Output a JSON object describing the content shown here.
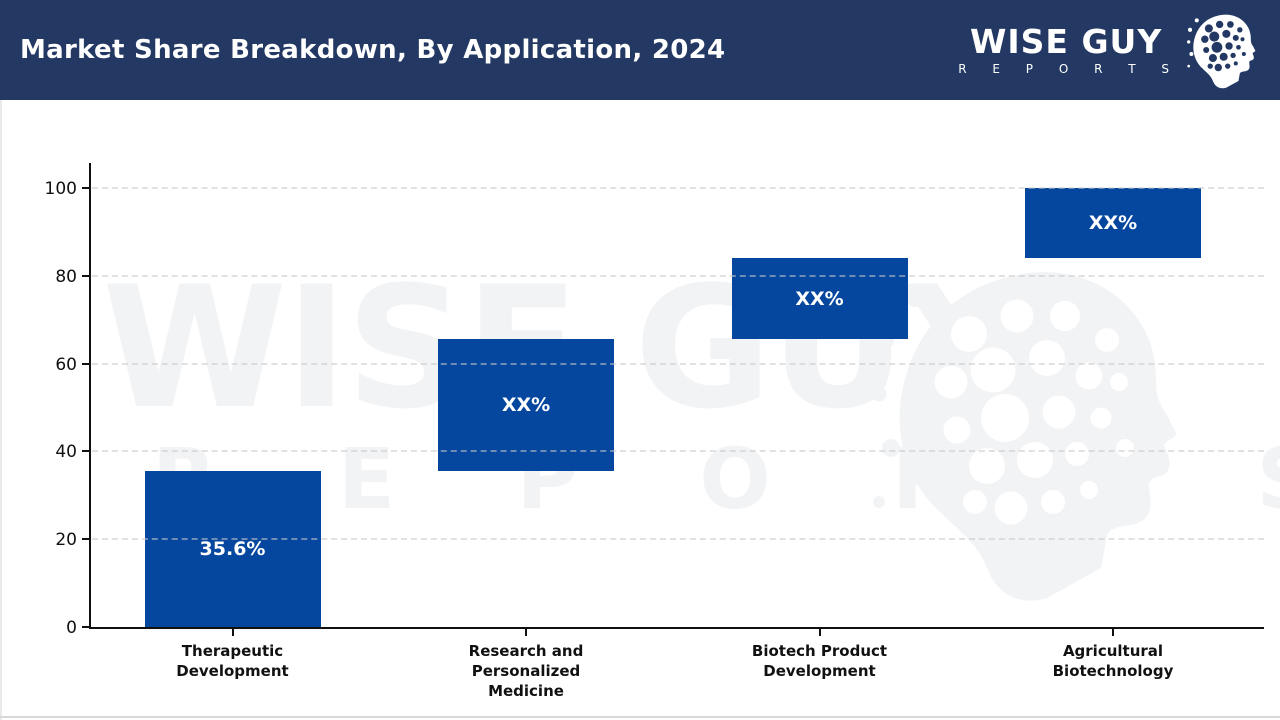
{
  "header": {
    "title": "Market Share Breakdown, By Application, 2024",
    "logo": {
      "name": "WISE GUY",
      "tagline": "R E P O R T S"
    }
  },
  "watermark": {
    "line1": "WISE GUY",
    "line2": "R E P O R T S"
  },
  "colors": {
    "header_bg": "#233963",
    "bar": "#05479e",
    "axis": "#111111",
    "gridline": "#d9d9d9",
    "bar_label_text": "#ffffff",
    "watermark": "#f2f3f5"
  },
  "chart_data": {
    "type": "bar",
    "subtype": "waterfall",
    "title": "Market Share Breakdown, By Application, 2024",
    "categories": [
      "Therapeutic\nDevelopment",
      "Research and\nPersonalized\nMedicine",
      "Biotech Product\nDevelopment",
      "Agricultural\nBiotechnology"
    ],
    "segments": [
      {
        "category": "Therapeutic Development",
        "start": 0,
        "end": 35.6,
        "label": "35.6%"
      },
      {
        "category": "Research and Personalized Medicine",
        "start": 35.6,
        "end": 65.6,
        "label": "XX%"
      },
      {
        "category": "Biotech Product Development",
        "start": 65.6,
        "end": 84,
        "label": "XX%"
      },
      {
        "category": "Agricultural Biotechnology",
        "start": 84,
        "end": 100,
        "label": "XX%"
      }
    ],
    "xlabel": "",
    "ylabel": "",
    "ylim": [
      0,
      100
    ],
    "yticks": [
      0,
      20,
      40,
      60,
      80,
      100
    ],
    "grid": "horizontal-dashed",
    "legend": "none"
  }
}
